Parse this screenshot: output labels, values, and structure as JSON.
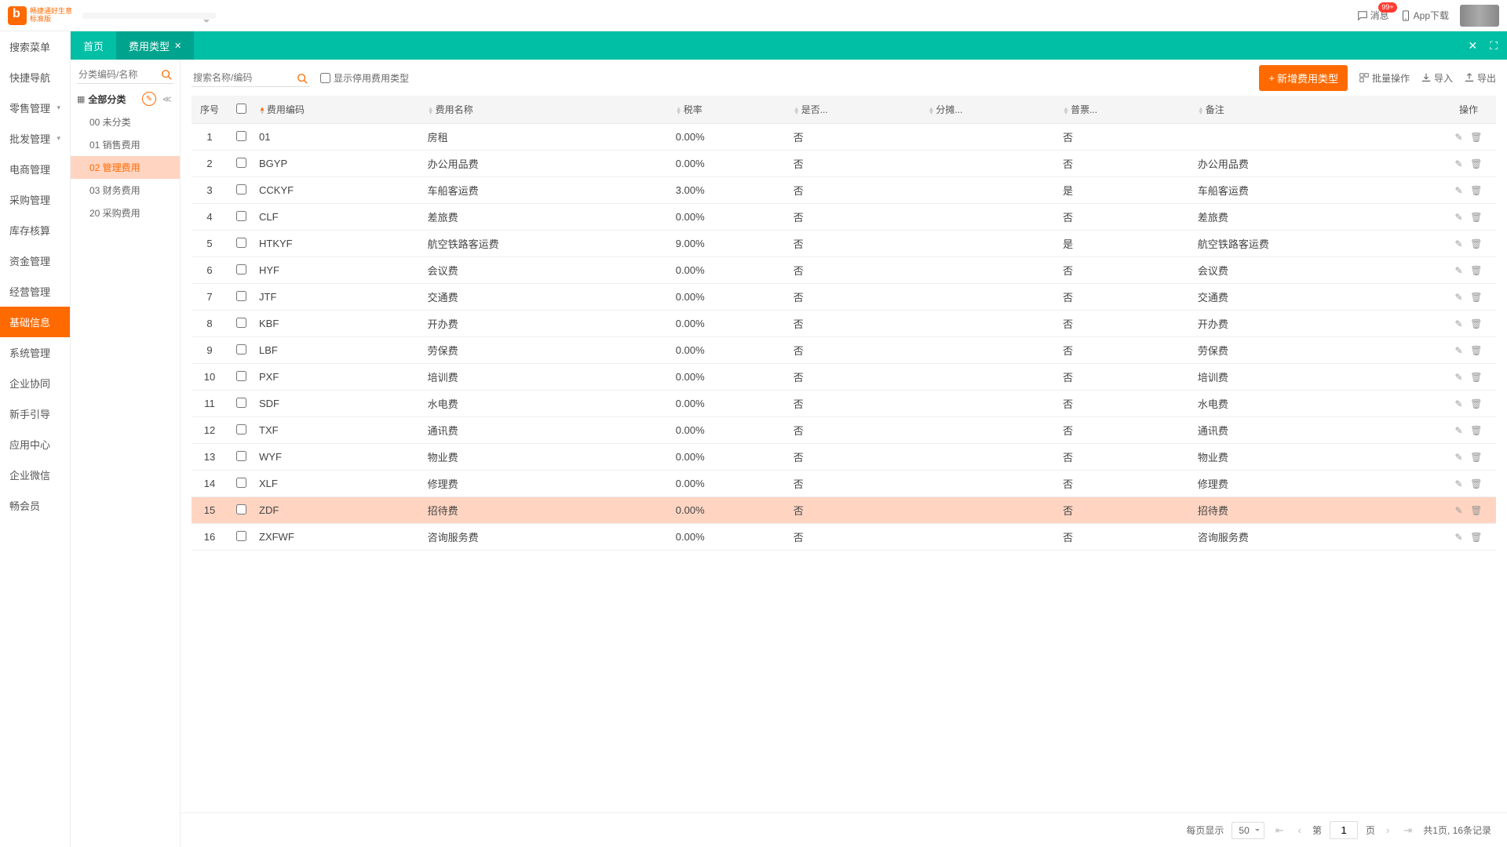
{
  "header": {
    "logo_line1": "畅捷通好生意",
    "logo_line2": "标准版",
    "company_placeholder": " ",
    "msg_label": "消息",
    "msg_badge": "99+",
    "app_label": "App下载"
  },
  "sidebar": {
    "items": [
      {
        "label": "搜索菜单",
        "expandable": false
      },
      {
        "label": "快捷导航",
        "expandable": false
      },
      {
        "label": "零售管理",
        "expandable": true
      },
      {
        "label": "批发管理",
        "expandable": true
      },
      {
        "label": "电商管理",
        "expandable": false
      },
      {
        "label": "采购管理",
        "expandable": false
      },
      {
        "label": "库存核算",
        "expandable": false
      },
      {
        "label": "资金管理",
        "expandable": false
      },
      {
        "label": "经营管理",
        "expandable": false
      },
      {
        "label": "基础信息",
        "expandable": false,
        "active": true
      },
      {
        "label": "系统管理",
        "expandable": false
      },
      {
        "label": "企业协同",
        "expandable": false
      },
      {
        "label": "新手引导",
        "expandable": false
      },
      {
        "label": "应用中心",
        "expandable": false
      },
      {
        "label": "企业微信",
        "expandable": false
      },
      {
        "label": "畅会员",
        "expandable": false
      }
    ]
  },
  "tabs": [
    {
      "label": "首页",
      "closable": false,
      "active": false
    },
    {
      "label": "费用类型",
      "closable": true,
      "active": true
    }
  ],
  "categories": {
    "search_placeholder": "分类编码/名称",
    "all_label": "全部分类",
    "items": [
      {
        "label": "00 未分类"
      },
      {
        "label": "01 销售费用"
      },
      {
        "label": "02 管理费用",
        "active": true
      },
      {
        "label": "03 财务费用"
      },
      {
        "label": "20 采购费用"
      }
    ]
  },
  "toolbar": {
    "search_placeholder": "搜索名称/编码",
    "show_disabled_label": "显示停用费用类型",
    "btn_add": "新增费用类型",
    "batch": "批量操作",
    "import": "导入",
    "export": "导出"
  },
  "table": {
    "columns": [
      "序号",
      "",
      "费用编码",
      "费用名称",
      "税率",
      "是否...",
      "分摊...",
      "普票...",
      "备注",
      "操作"
    ],
    "sorted_col": 2,
    "rows": [
      {
        "idx": 1,
        "code": "01",
        "name": "房租",
        "rate": "0.00%",
        "c5": "否",
        "c6": "",
        "c7": "否",
        "remark": ""
      },
      {
        "idx": 2,
        "code": "BGYP",
        "name": "办公用品费",
        "rate": "0.00%",
        "c5": "否",
        "c6": "",
        "c7": "否",
        "remark": "办公用品费"
      },
      {
        "idx": 3,
        "code": "CCKYF",
        "name": "车船客运费",
        "rate": "3.00%",
        "c5": "否",
        "c6": "",
        "c7": "是",
        "remark": "车船客运费"
      },
      {
        "idx": 4,
        "code": "CLF",
        "name": "差旅费",
        "rate": "0.00%",
        "c5": "否",
        "c6": "",
        "c7": "否",
        "remark": "差旅费"
      },
      {
        "idx": 5,
        "code": "HTKYF",
        "name": "航空铁路客运费",
        "rate": "9.00%",
        "c5": "否",
        "c6": "",
        "c7": "是",
        "remark": "航空铁路客运费"
      },
      {
        "idx": 6,
        "code": "HYF",
        "name": "会议费",
        "rate": "0.00%",
        "c5": "否",
        "c6": "",
        "c7": "否",
        "remark": "会议费"
      },
      {
        "idx": 7,
        "code": "JTF",
        "name": "交通费",
        "rate": "0.00%",
        "c5": "否",
        "c6": "",
        "c7": "否",
        "remark": "交通费"
      },
      {
        "idx": 8,
        "code": "KBF",
        "name": "开办费",
        "rate": "0.00%",
        "c5": "否",
        "c6": "",
        "c7": "否",
        "remark": "开办费"
      },
      {
        "idx": 9,
        "code": "LBF",
        "name": "劳保费",
        "rate": "0.00%",
        "c5": "否",
        "c6": "",
        "c7": "否",
        "remark": "劳保费"
      },
      {
        "idx": 10,
        "code": "PXF",
        "name": "培训费",
        "rate": "0.00%",
        "c5": "否",
        "c6": "",
        "c7": "否",
        "remark": "培训费"
      },
      {
        "idx": 11,
        "code": "SDF",
        "name": "水电费",
        "rate": "0.00%",
        "c5": "否",
        "c6": "",
        "c7": "否",
        "remark": "水电费"
      },
      {
        "idx": 12,
        "code": "TXF",
        "name": "通讯费",
        "rate": "0.00%",
        "c5": "否",
        "c6": "",
        "c7": "否",
        "remark": "通讯费"
      },
      {
        "idx": 13,
        "code": "WYF",
        "name": "物业费",
        "rate": "0.00%",
        "c5": "否",
        "c6": "",
        "c7": "否",
        "remark": "物业费"
      },
      {
        "idx": 14,
        "code": "XLF",
        "name": "修理费",
        "rate": "0.00%",
        "c5": "否",
        "c6": "",
        "c7": "否",
        "remark": "修理费"
      },
      {
        "idx": 15,
        "code": "ZDF",
        "name": "招待费",
        "rate": "0.00%",
        "c5": "否",
        "c6": "",
        "c7": "否",
        "remark": "招待费",
        "highlight": true
      },
      {
        "idx": 16,
        "code": "ZXFWF",
        "name": "咨询服务费",
        "rate": "0.00%",
        "c5": "否",
        "c6": "",
        "c7": "否",
        "remark": "咨询服务费"
      }
    ]
  },
  "pagination": {
    "per_page_label": "每页显示",
    "page_size": "50",
    "page_prefix": "第",
    "page_num": "1",
    "page_suffix": "页",
    "total_text": "共1页, 16条记录"
  }
}
